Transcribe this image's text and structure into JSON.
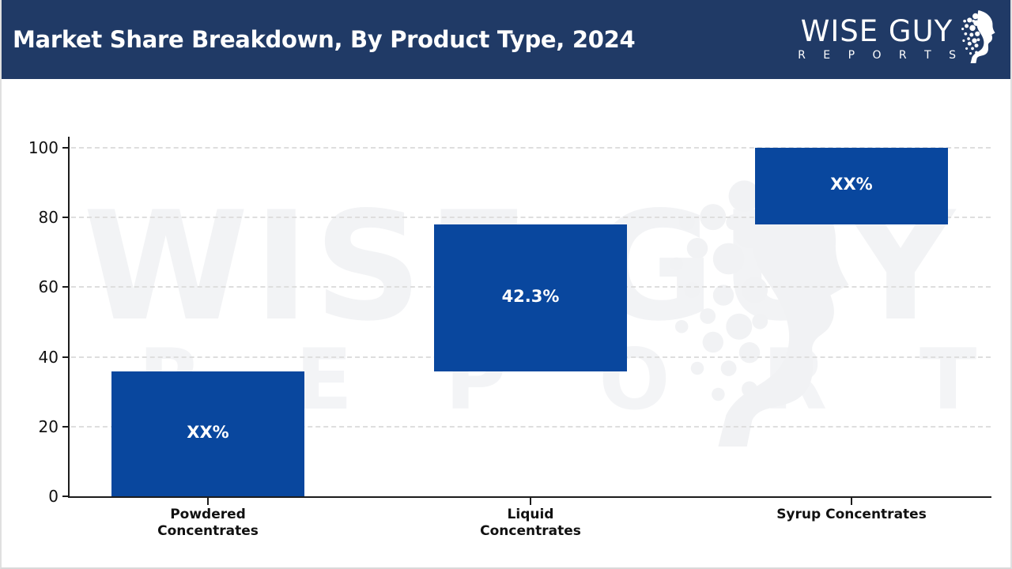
{
  "header": {
    "title": "Market Share Breakdown, By Product Type, 2024",
    "logo": {
      "line1": "WISE GUY",
      "line2": "R E P O R T S"
    }
  },
  "watermark": {
    "line1": "WISE GUY",
    "line2": "R E P O R T S"
  },
  "chart_data": {
    "type": "bar",
    "subtype": "waterfall",
    "title": "Market Share Breakdown, By Product Type, 2024",
    "categories": [
      "Powdered Concentrates",
      "Liquid Concentrates",
      "Syrup Concentrates"
    ],
    "segments": [
      {
        "category": "Powdered Concentrates",
        "label_lines": [
          "Powdered",
          "Concentrates"
        ],
        "start": 0,
        "end": 35.8,
        "value_label": "XX%"
      },
      {
        "category": "Liquid Concentrates",
        "label_lines": [
          "Liquid",
          "Concentrates"
        ],
        "start": 35.8,
        "end": 78.1,
        "value_label": "42.3%"
      },
      {
        "category": "Syrup Concentrates",
        "label_lines": [
          "Syrup Concentrates"
        ],
        "start": 78.1,
        "end": 100,
        "value_label": "XX%"
      }
    ],
    "ylim": [
      0,
      100
    ],
    "yticks": [
      0,
      20,
      40,
      60,
      80,
      100
    ],
    "xlabel": "",
    "ylabel": "",
    "grid": "horizontal-dashed",
    "legend": "none",
    "bar_color": "#09479e"
  },
  "colors": {
    "header_bg": "#203a66",
    "bar_blue": "#09479e",
    "gridline": "#dedede",
    "axis": "#1c1c1c",
    "watermark": "#f2f3f5"
  }
}
